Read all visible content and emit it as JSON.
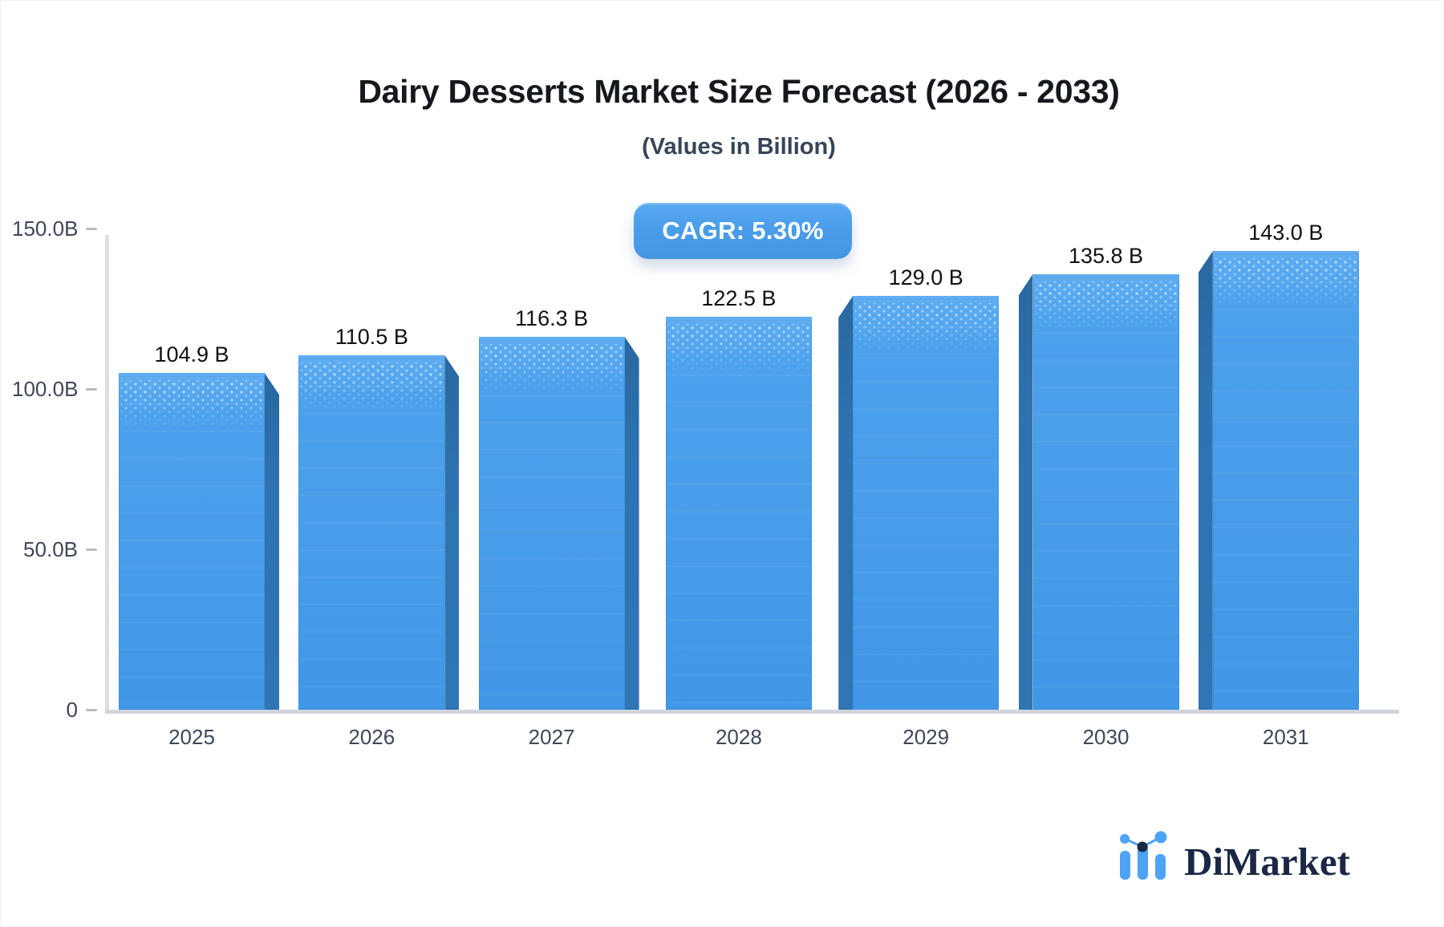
{
  "header": {
    "title": "Dairy Desserts Market Size Forecast (2026 - 2033)",
    "subtitle": "(Values in Billion)"
  },
  "cagr": {
    "label": "CAGR: 5.30%",
    "badge_color": "#4C9FE9",
    "text_color": "#FFFFFF"
  },
  "brand": {
    "name": "DiMarket",
    "icon": "mini-bar-line-chart-icon",
    "text_color": "#1B2745",
    "accent_blue": "#4DA3F5",
    "dot_dark": "#1B2745"
  },
  "chart_data": {
    "type": "bar",
    "title": "Dairy Desserts Market Size Forecast (2026 - 2033)",
    "subtitle": "(Values in Billion)",
    "categories": [
      "2025",
      "2026",
      "2027",
      "2028",
      "2029",
      "2030",
      "2031"
    ],
    "values": [
      104.9,
      110.5,
      116.3,
      122.5,
      129.0,
      135.8,
      143.0
    ],
    "value_labels": [
      "104.9 B",
      "110.5 B",
      "116.3 B",
      "122.5 B",
      "129.0 B",
      "135.8 B",
      "143.0 B"
    ],
    "unit": "Billion",
    "ylim": [
      0,
      150
    ],
    "yticks": [
      {
        "label": "150.0B",
        "value": 150
      },
      {
        "label": "100.0B",
        "value": 100
      },
      {
        "label": "50.0B",
        "value": 50
      },
      {
        "label": "0",
        "value": 0
      }
    ],
    "xlabel": "",
    "ylabel": "",
    "grid": false,
    "legend": false,
    "bar_color": "#4BA0EB",
    "bar_edge_color": "#2E73B1",
    "style": "3d-beveled-bars"
  }
}
